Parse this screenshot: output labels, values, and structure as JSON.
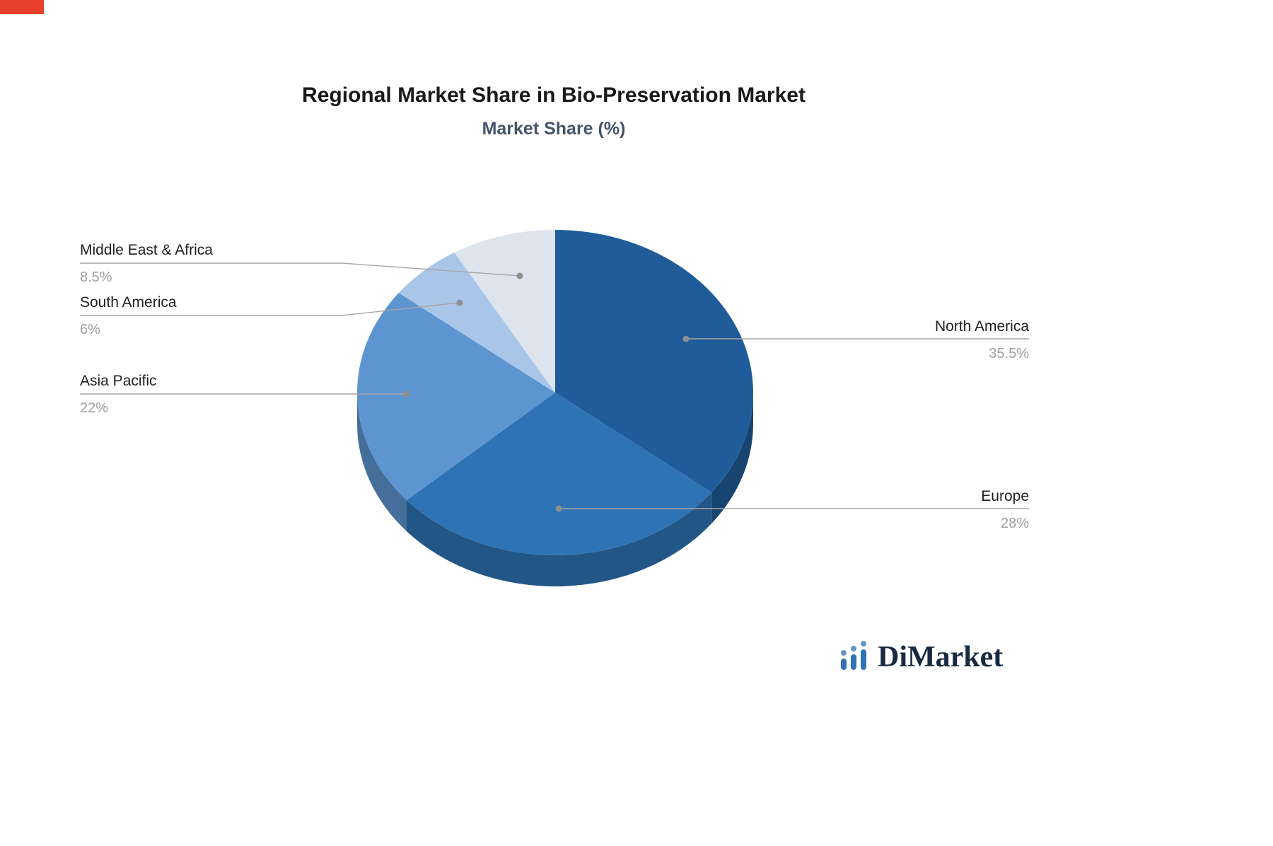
{
  "meta": {
    "background": "#ffffff",
    "corner_marker_color": "#e8402a"
  },
  "header": {
    "title": "Regional Market Share in Bio-Preservation Market",
    "subtitle": "Market Share (%)",
    "subtitle_color": "#44546a"
  },
  "logo": {
    "text": "DiMarket",
    "icon": "rising-bars-icon",
    "text_color": "#182a42",
    "icon_color": "#2e74b5"
  },
  "chart_data": {
    "type": "pie",
    "style": "3d",
    "title": "Regional Market Share in Bio-Preservation Market",
    "subtitle": "Market Share (%)",
    "unit": "%",
    "direction": "clockwise",
    "start_angle_deg_from_top": 0,
    "legend_position": "none",
    "slices": [
      {
        "label": "North America",
        "value": 35.5,
        "display": "35.5%",
        "color": "#1f5c99",
        "label_side": "right"
      },
      {
        "label": "Europe",
        "value": 28,
        "display": "28%",
        "color": "#2e74b5",
        "label_side": "right"
      },
      {
        "label": "Asia Pacific",
        "value": 22,
        "display": "22%",
        "color": "#5d95d0",
        "label_side": "left"
      },
      {
        "label": "South America",
        "value": 6,
        "display": "6%",
        "color": "#a9c6e8",
        "label_side": "left"
      },
      {
        "label": "Middle East & Africa",
        "value": 8.5,
        "display": "8.5%",
        "color": "#dde4ee",
        "label_side": "left"
      }
    ],
    "label_text_color": "#1f1f1f",
    "value_text_color": "#9e9e9e",
    "leader_line_color": "#a6a6a6",
    "leader_dot_color": "#8f8f8f"
  }
}
